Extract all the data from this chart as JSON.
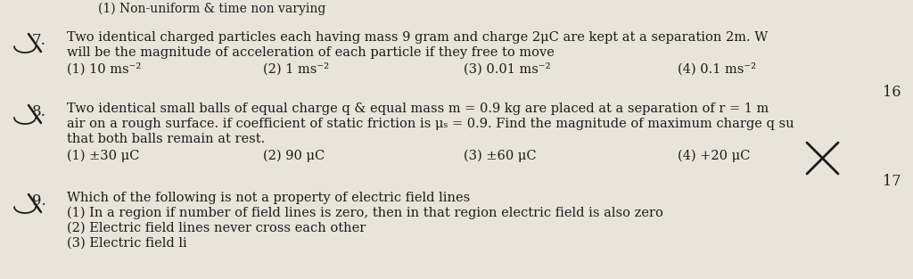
{
  "background_color": "#e8e4da",
  "top_text": "(1) Non-uniform & time non varying",
  "top_right_text": "",
  "q7_label": "7.",
  "q7_line1": "Two identical charged particles each having mass 9 gram and charge 2μC are kept at a separation 2m. W",
  "q7_line2": "will be the magnitude of acceleration of each particle if they free to move",
  "q7_opt1": "(1) 10 ms⁻²",
  "q7_opt2": "(2) 1 ms⁻²",
  "q7_opt3": "(3) 0.01 ms⁻²",
  "q7_opt4": "(4) 0.1 ms⁻²",
  "q8_label": "8.",
  "q8_line1": "Two identical small balls of equal charge q & equal mass m = 0.9 kg are placed at a separation of r = 1 m",
  "q8_line2": "air on a rough surface. if coefficient of static friction is μₛ = 0.9. Find the magnitude of maximum charge q su",
  "q8_line3": "that both balls remain at rest.",
  "q8_opt1": "(1) ±30 μC",
  "q8_opt2": "(2) 90 μC",
  "q8_opt3": "(3) ±60 μC",
  "q8_opt4": "(4) +20 μC",
  "q8_cross": "×",
  "q9_label": "9.",
  "q9_line1": "Which of the following is not a property of electric field lines",
  "q9_line2": "(1) In a region if number of field lines is zero, then in that region electric field is also zero",
  "q9_line3": "(2) Electric field lines never cross each other",
  "q9_line4": "(3) Electric field li",
  "side16": "16",
  "side17": "17",
  "font_size": 10.5,
  "text_color": "#1c1c1c",
  "side_color": "#222222"
}
